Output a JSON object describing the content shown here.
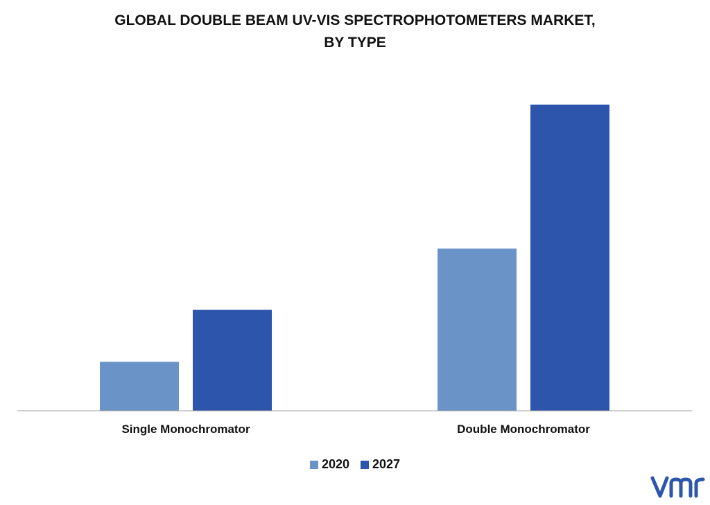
{
  "chart_data": {
    "type": "bar",
    "title_lines": [
      "GLOBAL DOUBLE BEAM UV-VIS SPECTROPHOTOMETERS MARKET,",
      "BY TYPE"
    ],
    "categories": [
      "Single Monochromator",
      "Double Monochromator"
    ],
    "series": [
      {
        "name": "2020",
        "color": "#6a93c8",
        "values": [
          16,
          53
        ]
      },
      {
        "name": "2027",
        "color": "#2d55ac",
        "values": [
          33,
          100
        ]
      }
    ],
    "ylim": [
      0,
      100
    ],
    "grid": false,
    "legend_position": "bottom"
  },
  "logo": {
    "icon": "vmr-logo-icon",
    "color": "#2d55ac"
  }
}
